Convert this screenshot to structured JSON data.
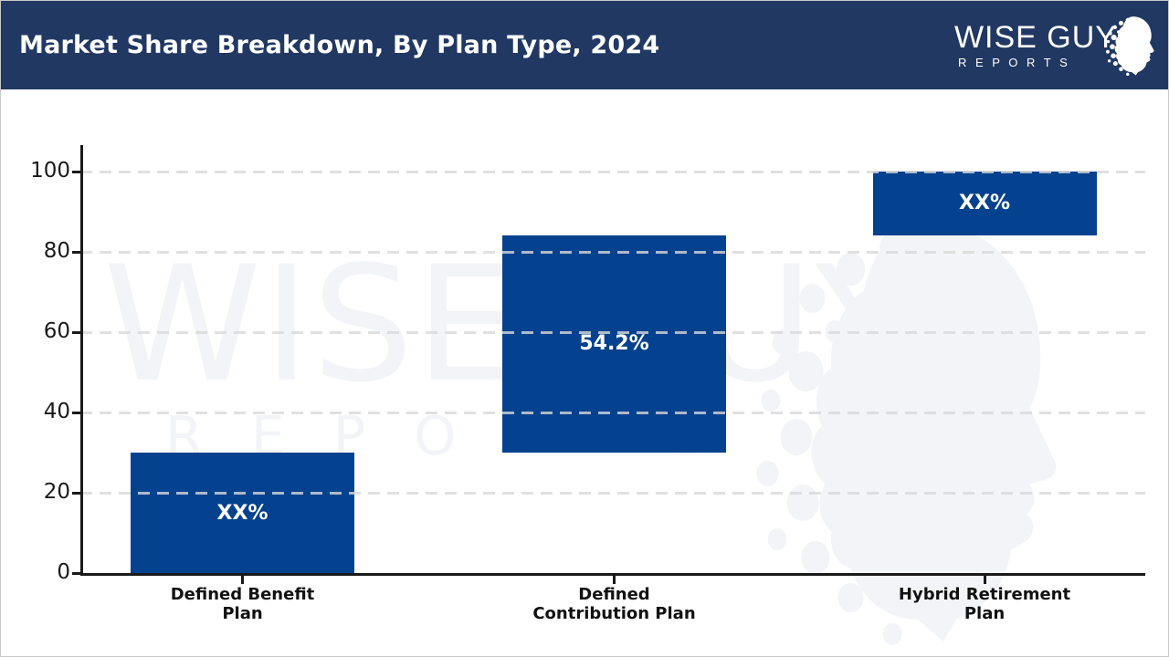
{
  "header": {
    "title": "Market Share Breakdown, By Plan Type, 2024",
    "logo": {
      "wordmark": "WISE GUY",
      "sub": "R E P O R T S"
    }
  },
  "watermark": {
    "wordmark": "WISE GUY",
    "sub": "R E P O R T S"
  },
  "colors": {
    "header_bg": "#213863",
    "bar": "#04418F",
    "bar_label": "#FFFFFF",
    "axis": "#1A1A1A",
    "grid": "#D9D9D9",
    "watermark": "#F2F4F7",
    "frame_border": "#C9C9C9",
    "category_label": "#111111"
  },
  "chart_data": {
    "type": "bar",
    "subtype": "floating_segment_bars",
    "title": "Market Share Breakdown, By Plan Type, 2024",
    "categories": [
      "Defined Benefit Plan",
      "Defined Contribution Plan",
      "Hybrid Retirement Plan"
    ],
    "category_lines": [
      [
        "Defined Benefit",
        "Plan"
      ],
      [
        "Defined",
        "Contribution Plan"
      ],
      [
        "Hybrid Retirement",
        "Plan"
      ]
    ],
    "bars": [
      {
        "category": "Defined Benefit Plan",
        "start": 0,
        "end": 30,
        "value_label": "XX%"
      },
      {
        "category": "Defined Contribution Plan",
        "start": 30,
        "end": 84.2,
        "value_label": "54.2%"
      },
      {
        "category": "Hybrid Retirement Plan",
        "start": 84.2,
        "end": 100,
        "value_label": "XX%"
      }
    ],
    "xlabel": "",
    "ylabel": "",
    "ylim": [
      0,
      100
    ],
    "yticks": [
      0,
      20,
      40,
      60,
      80,
      100
    ],
    "grid": "horizontal_dashed",
    "legend": "none"
  }
}
